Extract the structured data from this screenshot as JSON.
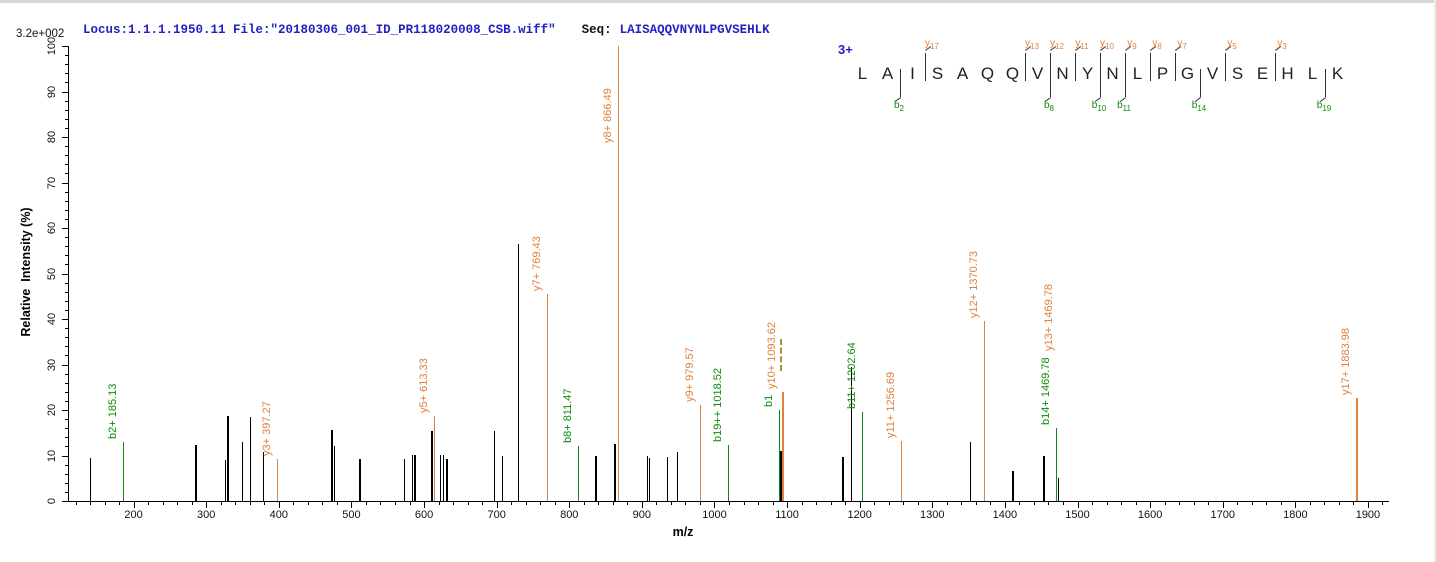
{
  "header": {
    "locus_file": "Locus:1.1.1.1950.11 File:\"20180306_001_ID_PR118020008_CSB.wiff\"",
    "seq_label": "Seq:",
    "seq_value": "LAISAQQVNYNLPGVSEHLK",
    "max_intensity": "3.2e+002",
    "header_color": "#2222c0"
  },
  "precursor": {
    "charge": "3+"
  },
  "chart_data": {
    "type": "bar",
    "subtype": "ms2-stick-spectrum",
    "xlabel": "m/z",
    "ylabel": "Relative  Intensity (%)",
    "xlim": [
      111,
      1929
    ],
    "ylim": [
      0,
      100
    ],
    "grid": false,
    "x_tick_labels": [
      200,
      300,
      400,
      500,
      600,
      700,
      800,
      900,
      1000,
      1100,
      1200,
      1300,
      1400,
      1500,
      1600,
      1700,
      1800,
      1900
    ],
    "x_minor_step": 20,
    "y_tick_labels": [
      0,
      10,
      20,
      30,
      40,
      50,
      60,
      70,
      80,
      90,
      100
    ],
    "y_minor_step": 2,
    "series": [
      {
        "name": "unmatched",
        "color": "#000000",
        "peaks": [
          {
            "mz": 140,
            "intensity": 9.4
          },
          {
            "mz": 285,
            "intensity": 12.3
          },
          {
            "mz": 326,
            "intensity": 9.0
          },
          {
            "mz": 329,
            "intensity": 18.6
          },
          {
            "mz": 349,
            "intensity": 13.0
          },
          {
            "mz": 360,
            "intensity": 18.4
          },
          {
            "mz": 378,
            "intensity": 10.8
          },
          {
            "mz": 472,
            "intensity": 15.7
          },
          {
            "mz": 475.5,
            "intensity": 12.1
          },
          {
            "mz": 511,
            "intensity": 9.2
          },
          {
            "mz": 572,
            "intensity": 9.3
          },
          {
            "mz": 583,
            "intensity": 10.2
          },
          {
            "mz": 586.5,
            "intensity": 10.2
          },
          {
            "mz": 610,
            "intensity": 15.4
          },
          {
            "mz": 622,
            "intensity": 10.2
          },
          {
            "mz": 626,
            "intensity": 10.2
          },
          {
            "mz": 630.5,
            "intensity": 9.2
          },
          {
            "mz": 696,
            "intensity": 15.4
          },
          {
            "mz": 707,
            "intensity": 10.0
          },
          {
            "mz": 729,
            "intensity": 56.5
          },
          {
            "mz": 836,
            "intensity": 10.0
          },
          {
            "mz": 862,
            "intensity": 12.6
          },
          {
            "mz": 907,
            "intensity": 10.0
          },
          {
            "mz": 909.5,
            "intensity": 9.4
          },
          {
            "mz": 934,
            "intensity": 9.7
          },
          {
            "mz": 948,
            "intensity": 10.8
          },
          {
            "mz": 1090.5,
            "intensity": 11.0
          },
          {
            "mz": 1176,
            "intensity": 9.6
          },
          {
            "mz": 1188,
            "intensity": 29.4
          },
          {
            "mz": 1352,
            "intensity": 12.9
          },
          {
            "mz": 1410,
            "intensity": 6.6
          },
          {
            "mz": 1453,
            "intensity": 9.8
          },
          {
            "mz": 1472.5,
            "intensity": 5.0
          }
        ]
      },
      {
        "name": "y-ions",
        "color": "#e0813d",
        "peaks": [
          {
            "mz": 397.27,
            "intensity": 9.2,
            "label": "y3+ 397.27"
          },
          {
            "mz": 613.33,
            "intensity": 18.6,
            "label": "y5+ 613.33"
          },
          {
            "mz": 769.43,
            "intensity": 45.4,
            "label": "y7+ 769.43"
          },
          {
            "mz": 866.49,
            "intensity": 100,
            "label": "y8+ 866.49",
            "label_bottom_pct": 78
          },
          {
            "mz": 979.57,
            "intensity": 21.0,
            "label": "y9+ 979.57"
          },
          {
            "mz": 1093.62,
            "intensity": 24.0,
            "label": "y10+ 1093.62"
          },
          {
            "mz": 1256.69,
            "intensity": 13.3,
            "label": "y11+ 1256.69"
          },
          {
            "mz": 1370.73,
            "intensity": 39.6,
            "label": "y12+ 1370.73"
          },
          {
            "mz": 1883.98,
            "intensity": 22.7,
            "label": "y17+ 1883.98"
          }
        ]
      },
      {
        "name": "b-ions",
        "color": "#0d8c0d",
        "peaks": [
          {
            "mz": 185.13,
            "intensity": 13.0,
            "label": "b2+ 185.13"
          },
          {
            "mz": 811.47,
            "intensity": 12.2,
            "label": "b8+ 811.47"
          },
          {
            "mz": 1018.52,
            "intensity": 12.3,
            "label": "b19++ 1018.52"
          },
          {
            "mz": 1088.57,
            "intensity": 19.9,
            "label": "b1"
          },
          {
            "mz": 1202.64,
            "intensity": 19.5,
            "label": "b11+ 1202.64"
          },
          {
            "mz": 1469.78,
            "intensity": 16.0,
            "label": "b14+ 1469.78"
          }
        ]
      }
    ],
    "extra_labels": [
      {
        "text": "y13+ 1469.78",
        "mz": 1475,
        "bottom_pct": 33,
        "series": "y-ions"
      }
    ],
    "dashed_segments": [
      {
        "mz": 1090.5,
        "from_pct": 28.5,
        "to_pct": 35.5
      }
    ]
  },
  "sequence": {
    "residues": [
      "L",
      "A",
      "I",
      "S",
      "A",
      "Q",
      "Q",
      "V",
      "N",
      "Y",
      "N",
      "L",
      "P",
      "G",
      "V",
      "S",
      "E",
      "H",
      "L",
      "K"
    ],
    "y_markers": [
      {
        "name": "y17",
        "after": 3
      },
      {
        "name": "y13",
        "after": 7
      },
      {
        "name": "y12",
        "after": 8
      },
      {
        "name": "y11",
        "after": 9
      },
      {
        "name": "y10",
        "after": 10
      },
      {
        "name": "y9",
        "after": 11
      },
      {
        "name": "y8",
        "after": 12
      },
      {
        "name": "y7",
        "after": 13
      },
      {
        "name": "y5",
        "after": 15
      },
      {
        "name": "y3",
        "after": 17
      }
    ],
    "b_markers": [
      {
        "name": "b2",
        "after": 2
      },
      {
        "name": "b8",
        "after": 8
      },
      {
        "name": "b10",
        "after": 10
      },
      {
        "name": "b11",
        "after": 11
      },
      {
        "name": "b14",
        "after": 14
      },
      {
        "name": "b19",
        "after": 19
      }
    ],
    "y_color": "#e0813d",
    "b_color": "#0d8c0d"
  }
}
